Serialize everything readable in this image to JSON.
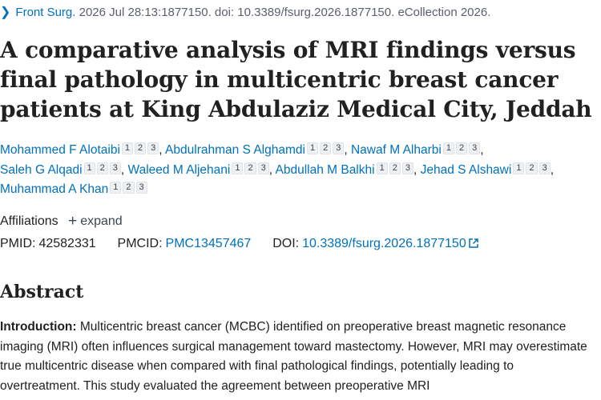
{
  "citation": {
    "journal": "Front Surg.",
    "details": "2026 Jul 28:13:1877150. doi: 10.3389/fsurg.2026.1877150. eCollection 2026."
  },
  "title": "A comparative analysis of MRI findings versus final pathology in multicentric breast cancer patients at King Abdulaziz Medical City, Jeddah",
  "authors": [
    {
      "name": "Mohammed F Alotaibi",
      "affils": [
        "1",
        "2",
        "3"
      ]
    },
    {
      "name": "Abdulrahman S Alghamdi",
      "affils": [
        "1",
        "2",
        "3"
      ]
    },
    {
      "name": "Nawaf M Alharbi",
      "affils": [
        "1",
        "2",
        "3"
      ]
    },
    {
      "name": "Saleh G Alqadi",
      "affils": [
        "1",
        "2",
        "3"
      ]
    },
    {
      "name": "Waleed M Aljehani",
      "affils": [
        "1",
        "2",
        "3"
      ]
    },
    {
      "name": "Abdullah M Balkhi",
      "affils": [
        "1",
        "2",
        "3"
      ]
    },
    {
      "name": "Jehad S Alshawi",
      "affils": [
        "1",
        "2",
        "3"
      ]
    },
    {
      "name": "Muhammad A Khan",
      "affils": [
        "1",
        "2",
        "3"
      ]
    }
  ],
  "affiliations": {
    "label": "Affiliations",
    "expand_label": "expand"
  },
  "identifiers": {
    "pmid_label": "PMID:",
    "pmid": "42582331",
    "pmcid_label": "PMCID:",
    "pmcid": "PMC13457467",
    "doi_label": "DOI:",
    "doi": "10.3389/fsurg.2026.1877150"
  },
  "abstract": {
    "heading": "Abstract",
    "intro_label": "Introduction:",
    "intro_text": " Multicentric breast cancer (MCBC) identified on preoperative breast magnetic resonance imaging (MRI) often influences surgical management toward mastectomy. However, MRI may overestimate true multicentric disease when compared with final pathological findings, potentially leading to overtreatment. This study evaluated the agreement between preoperative MRI"
  },
  "colors": {
    "link": "#0071bc",
    "text": "#212121",
    "muted": "#5b616b"
  }
}
